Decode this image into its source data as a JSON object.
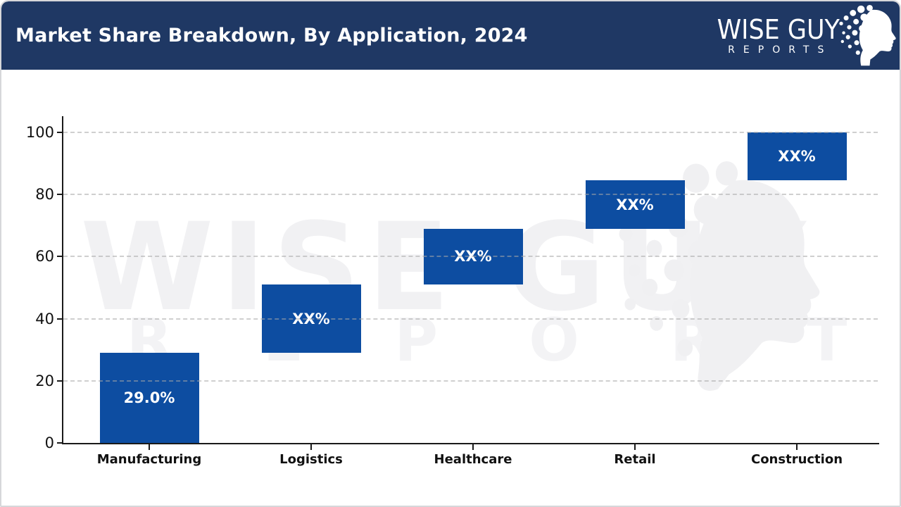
{
  "header": {
    "title": "Market Share Breakdown, By Application, 2024",
    "bg_color": "#1f3864",
    "logo": {
      "name": "WISE GUY",
      "sub": "REPORTS"
    }
  },
  "watermark": {
    "name": "WISE GUY",
    "sub": "R E P O R T S"
  },
  "chart_data": {
    "type": "bar",
    "subtype": "floating-stacked-waterfall",
    "title": "Market Share Breakdown, By Application, 2024",
    "categories": [
      "Manufacturing",
      "Logistics",
      "Healthcare",
      "Retail",
      "Construction"
    ],
    "values": [
      29.0,
      22.0,
      18.0,
      15.5,
      15.5
    ],
    "bar_labels": [
      "29.0%",
      "XX%",
      "XX%",
      "XX%",
      "XX%"
    ],
    "stacking_note": "each bar starts at the cumulative total of the previous bars; final bar tops out at 100",
    "xlabel": "",
    "ylabel": "",
    "yticks": [
      0,
      20,
      40,
      60,
      80,
      100
    ],
    "ylim": [
      0,
      105
    ],
    "grid": "horizontal dashed gray, drawn over bars",
    "legend": "none",
    "bar_color": "#0d4da1",
    "bar_label_color": "#ffffff",
    "axis_color": "#1a1a1a"
  }
}
